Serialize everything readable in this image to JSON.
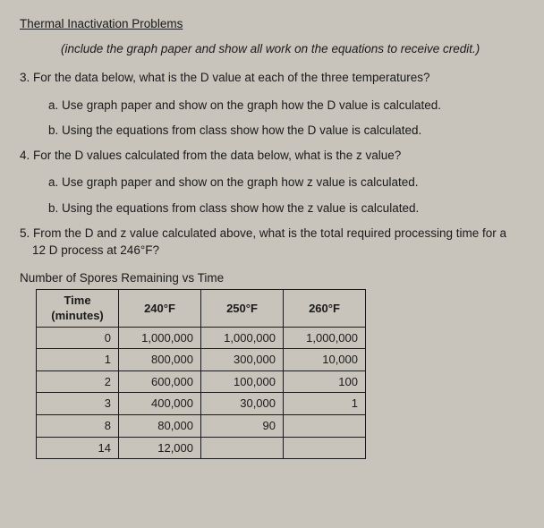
{
  "heading": "Thermal Inactivation Problems",
  "instruction": "(include the graph paper and show all work on the equations to receive credit.)",
  "q3": "3.  For the data below, what is the D value at each of the three temperatures?",
  "q3a": "a.  Use graph paper and show on the graph how the D value is calculated.",
  "q3b": "b.  Using the equations from class show how the D value is calculated.",
  "q4": "4.  For the D values calculated from the data below, what is the z value?",
  "q4a": "a.  Use graph paper and show on the graph how z value is calculated.",
  "q4b": "b.  Using the equations from class show how the z value is calculated.",
  "q5": "5.  From the D and z value calculated above, what is the total required processing time for a 12 D process at 246°F?",
  "table_title": "Number of Spores Remaining vs Time",
  "table": {
    "type": "table",
    "background_color": "#c8c4bc",
    "border_color": "#1a1a1a",
    "text_color": "#1a1a1a",
    "fontsize": 13,
    "columns": [
      "Time (minutes)",
      "240°F",
      "250°F",
      "260°F"
    ],
    "col_time_label_line1": "Time",
    "col_time_label_line2": "(minutes)",
    "col_240": "240°F",
    "col_250": "250°F",
    "col_260": "260°F",
    "rows": [
      {
        "t": "0",
        "c240": "1,000,000",
        "c250": "1,000,000",
        "c260": "1,000,000"
      },
      {
        "t": "1",
        "c240": "800,000",
        "c250": "300,000",
        "c260": "10,000"
      },
      {
        "t": "2",
        "c240": "600,000",
        "c250": "100,000",
        "c260": "100"
      },
      {
        "t": "3",
        "c240": "400,000",
        "c250": "30,000",
        "c260": "1"
      },
      {
        "t": "8",
        "c240": "80,000",
        "c250": "90",
        "c260": ""
      },
      {
        "t": "14",
        "c240": "12,000",
        "c250": "",
        "c260": ""
      }
    ]
  }
}
